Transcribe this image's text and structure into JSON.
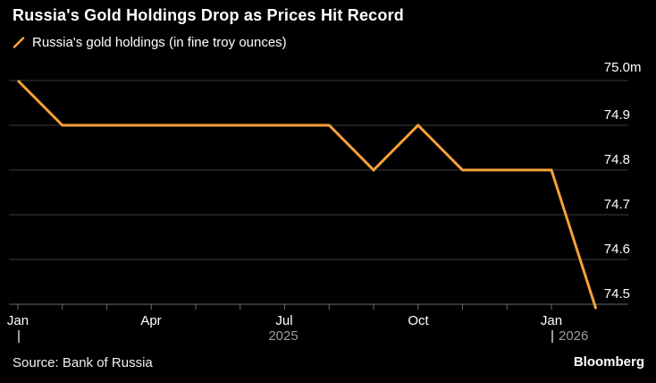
{
  "title": "Russia's Gold Holdings Drop as Prices Hit Record",
  "legend": {
    "label": "Russia's gold holdings (in fine troy ounces)"
  },
  "footer": {
    "source": "Source: Bank of Russia",
    "brand": "Bloomberg"
  },
  "colors": {
    "background": "#000000",
    "line": "#f7a139",
    "grid": "#3b3b3b",
    "axis": "#6a6a6a",
    "label": "#ffffff",
    "muted": "#9c9c9c"
  },
  "chart_data": {
    "type": "line",
    "title": "Russia's Gold Holdings Drop as Prices Hit Record",
    "unit": "million fine troy ounces",
    "x": [
      "Jan 2025",
      "Feb 2025",
      "Mar 2025",
      "Apr 2025",
      "May 2025",
      "Jun 2025",
      "Jul 2025",
      "Aug 2025",
      "Sep 2025",
      "Oct 2025",
      "Nov 2025",
      "Dec 2025",
      "Jan 2026",
      "Feb 2026"
    ],
    "series": [
      {
        "name": "Russia's gold holdings (in fine troy ounces)",
        "values": [
          75.0,
          74.9,
          74.9,
          74.9,
          74.9,
          74.9,
          74.9,
          74.9,
          74.8,
          74.9,
          74.8,
          74.8,
          74.8,
          74.49
        ]
      }
    ],
    "ylim": [
      74.45,
      75.05
    ],
    "grid": true,
    "legend_position": "top-left",
    "y_ticks": [
      {
        "value": 75.0,
        "label": "75.0",
        "suffix": "m"
      },
      {
        "value": 74.9,
        "label": "74.9"
      },
      {
        "value": 74.8,
        "label": "74.8"
      },
      {
        "value": 74.7,
        "label": "74.7"
      },
      {
        "value": 74.6,
        "label": "74.6"
      },
      {
        "value": 74.5,
        "label": "74.5"
      }
    ],
    "x_tick_labels": [
      {
        "month_index": 0,
        "label": "Jan"
      },
      {
        "month_index": 3,
        "label": "Apr"
      },
      {
        "month_index": 6,
        "label": "Jul"
      },
      {
        "month_index": 9,
        "label": "Oct"
      },
      {
        "month_index": 12,
        "label": "Jan"
      }
    ],
    "year_markers": [
      {
        "month_index": 0,
        "label": "2025"
      },
      {
        "month_index": 12,
        "label": "2026"
      }
    ]
  }
}
